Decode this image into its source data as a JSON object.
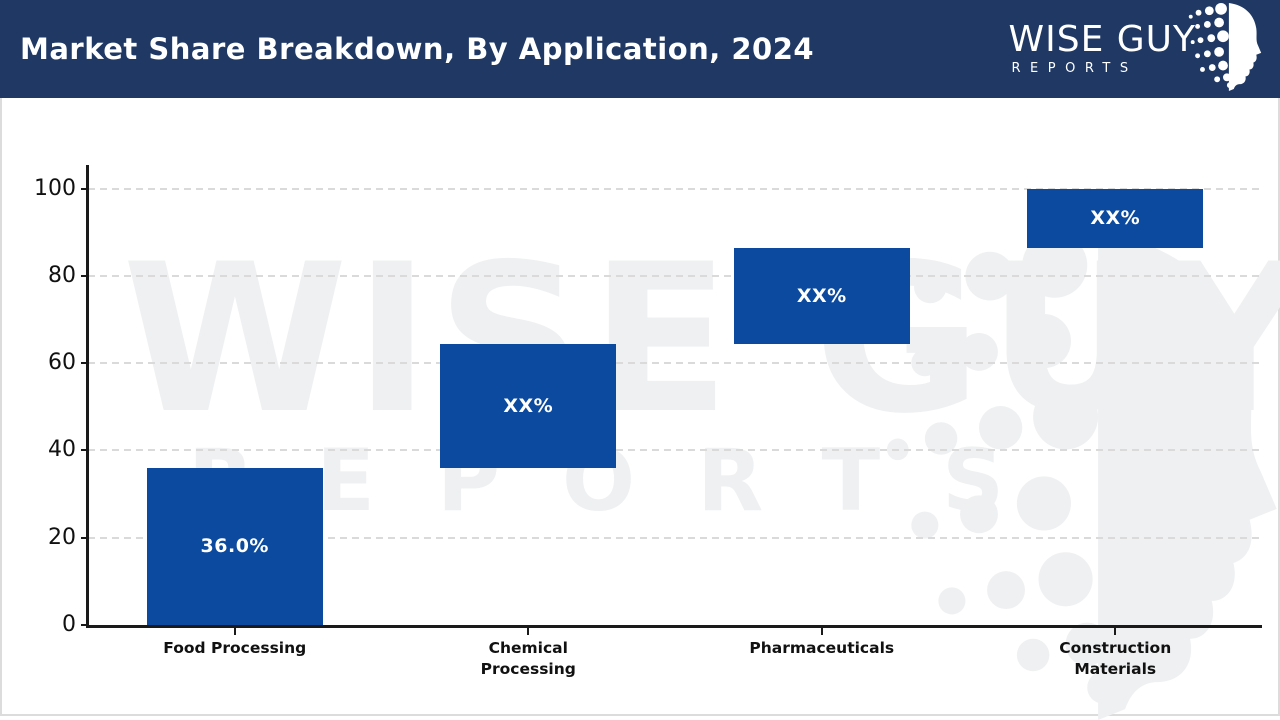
{
  "header": {
    "title": "Market Share Breakdown, By Application, 2024",
    "logo": {
      "line1": "WISE GUY",
      "line2": "REPORTS"
    }
  },
  "watermark": {
    "line1": "WISE GUY",
    "line2": "REPORTS"
  },
  "chart_data": {
    "type": "waterfall",
    "title": "Market Share Breakdown, By Application, 2024",
    "categories": [
      "Food Processing",
      "Chemical\nProcessing",
      "Pharmaceuticals",
      "Construction\nMaterials"
    ],
    "segments": [
      {
        "category": "Food Processing",
        "start": 0,
        "end": 36,
        "label": "36.0%"
      },
      {
        "category": "Chemical Processing",
        "start": 36,
        "end": 64.5,
        "label": "XX%"
      },
      {
        "category": "Pharmaceuticals",
        "start": 64.5,
        "end": 86.5,
        "label": "XX%"
      },
      {
        "category": "Construction Materials",
        "start": 86.5,
        "end": 100,
        "label": "XX%"
      }
    ],
    "ylim": [
      0,
      100
    ],
    "yticks": [
      0,
      20,
      40,
      60,
      80,
      100
    ],
    "xlabel": "",
    "ylabel": "",
    "grid": "horizontal-dashed",
    "legend": "none",
    "bar_color": "#0b4a9e",
    "bar_label_color": "#ffffff"
  },
  "colors": {
    "header_bg": "#1f3864",
    "bar": "#0b4a9e",
    "watermark": "#eff0f2",
    "gridline": "#dadada",
    "axis": "#1a1a1a",
    "frame_border": "#dcdcdc"
  }
}
